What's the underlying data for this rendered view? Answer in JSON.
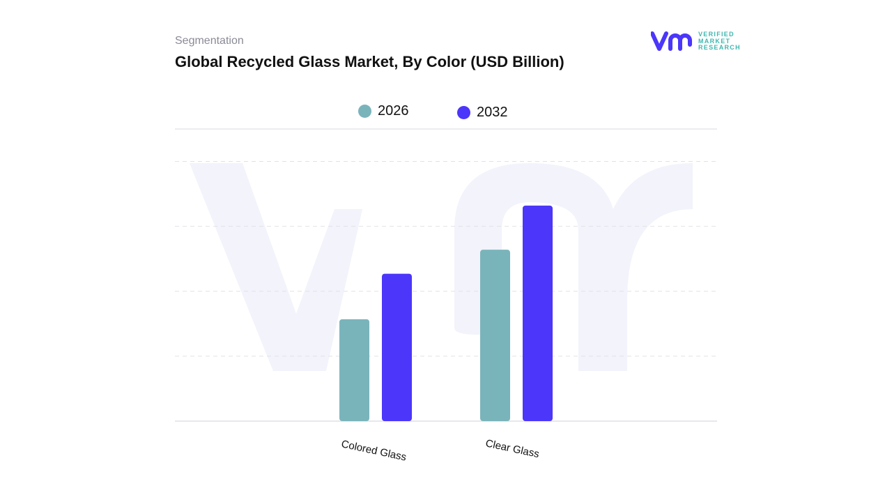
{
  "header": {
    "segment_label": "Segmentation",
    "title": "Global Recycled Glass Market, By Color (USD Billion)"
  },
  "logo": {
    "text_lines": [
      "VERIFIED",
      "MARKET",
      "RESEARCH"
    ],
    "registered": "®"
  },
  "chart_data": {
    "type": "bar",
    "title": "Global Recycled Glass Market, By Color (USD Billion)",
    "categories": [
      "Colored Glass",
      "Clear Glass"
    ],
    "series": [
      {
        "name": "2026",
        "color": "#7ab4bb",
        "values": [
          1.57,
          2.64
        ]
      },
      {
        "name": "2032",
        "color": "#4b36fa",
        "values": [
          2.27,
          3.32
        ]
      }
    ],
    "xlabel": "",
    "ylabel": "",
    "ylim": [
      0,
      4.5
    ],
    "y_tick_labels_shown": false,
    "grid": true,
    "legend_position": "top-center",
    "x_tick_label_rotation": "slanted"
  }
}
